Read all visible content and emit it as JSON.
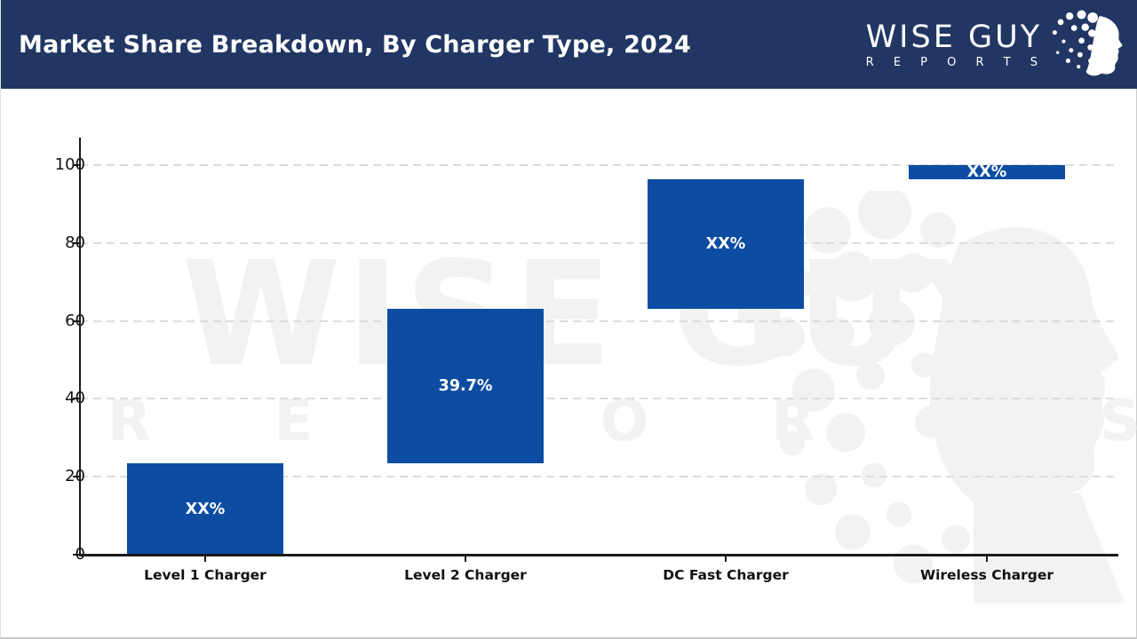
{
  "header": {
    "title": "Market Share Breakdown, By Charger Type, 2024",
    "logo": {
      "line1": "WISE GUY",
      "line2": "R E P O R T S"
    }
  },
  "watermark": {
    "line1": "WISE GUY",
    "line2": "R E P O R T S"
  },
  "colors": {
    "header_bg": "#213663",
    "bar": "#0c4da2",
    "grid": "#dcdcdc",
    "axis": "#1a1a1a",
    "watermark": "#f2f2f2",
    "bar_label": "#ffffff"
  },
  "chart_data": {
    "type": "bar",
    "subtype": "waterfall-floating-bars",
    "title": "Market Share Breakdown, By Charger Type, 2024",
    "categories": [
      "Level 1 Charger",
      "Level 2 Charger",
      "DC Fast Charger",
      "Wireless Charger"
    ],
    "segments": [
      {
        "category": "Level 1 Charger",
        "start": 0,
        "end": 23.4,
        "label": "XX%"
      },
      {
        "category": "Level 2 Charger",
        "start": 23.4,
        "end": 63.1,
        "label": "39.7%",
        "value": 39.7
      },
      {
        "category": "DC Fast Charger",
        "start": 63.1,
        "end": 96.4,
        "label": "XX%"
      },
      {
        "category": "Wireless Charger",
        "start": 96.4,
        "end": 100,
        "label": "XX%"
      }
    ],
    "xlabel": "",
    "ylabel": "",
    "ylim": [
      0,
      105
    ],
    "yticks": [
      0,
      20,
      40,
      60,
      80,
      100
    ],
    "grid": "horizontal-dashed",
    "legend": "none"
  }
}
